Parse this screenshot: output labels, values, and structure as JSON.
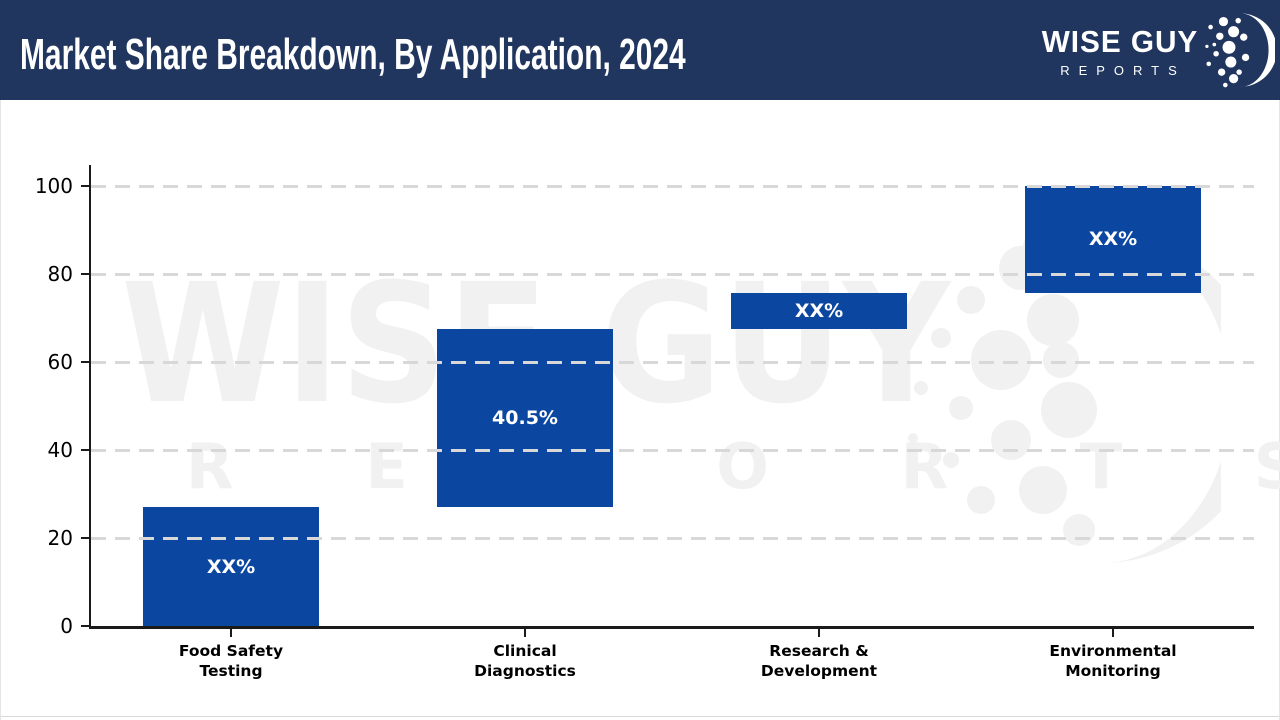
{
  "header": {
    "title": "Market Share Breakdown, By Application, 2024",
    "logo": {
      "line1": "WISE GUY",
      "line2": "REPORTS"
    }
  },
  "watermark": {
    "line1": "WISE GUY",
    "line2": "R E P O R T S"
  },
  "colors": {
    "header_bg": "#20365f",
    "bar": "#0b47a0",
    "grid": "#d8d8d8",
    "axis": "#1a1a1a",
    "bar_label": "#ffffff",
    "watermark": "#f1f1f2"
  },
  "chart_data": {
    "type": "bar",
    "subtype": "waterfall",
    "title": "Market Share Breakdown, By Application, 2024",
    "xlabel": "",
    "ylabel": "",
    "ylim": [
      0,
      105
    ],
    "y_ticks": [
      0,
      20,
      40,
      60,
      80,
      100
    ],
    "grid": true,
    "legend": false,
    "categories": [
      "Food Safety Testing",
      "Clinical Diagnostics",
      "Research & Development",
      "Environmental Monitoring"
    ],
    "category_label_lines": [
      [
        "Food Safety",
        "Testing"
      ],
      [
        "Clinical",
        "Diagnostics"
      ],
      [
        "Research &",
        "Development"
      ],
      [
        "Environmental",
        "Monitoring"
      ]
    ],
    "segments": [
      {
        "category": "Food Safety Testing",
        "label": "XX%",
        "start": 0,
        "end": 27
      },
      {
        "category": "Clinical Diagnostics",
        "label": "40.5%",
        "start": 27,
        "end": 67.5
      },
      {
        "category": "Research & Development",
        "label": "XX%",
        "start": 67.5,
        "end": 75.7
      },
      {
        "category": "Environmental Monitoring",
        "label": "XX%",
        "start": 75.7,
        "end": 100
      }
    ]
  }
}
